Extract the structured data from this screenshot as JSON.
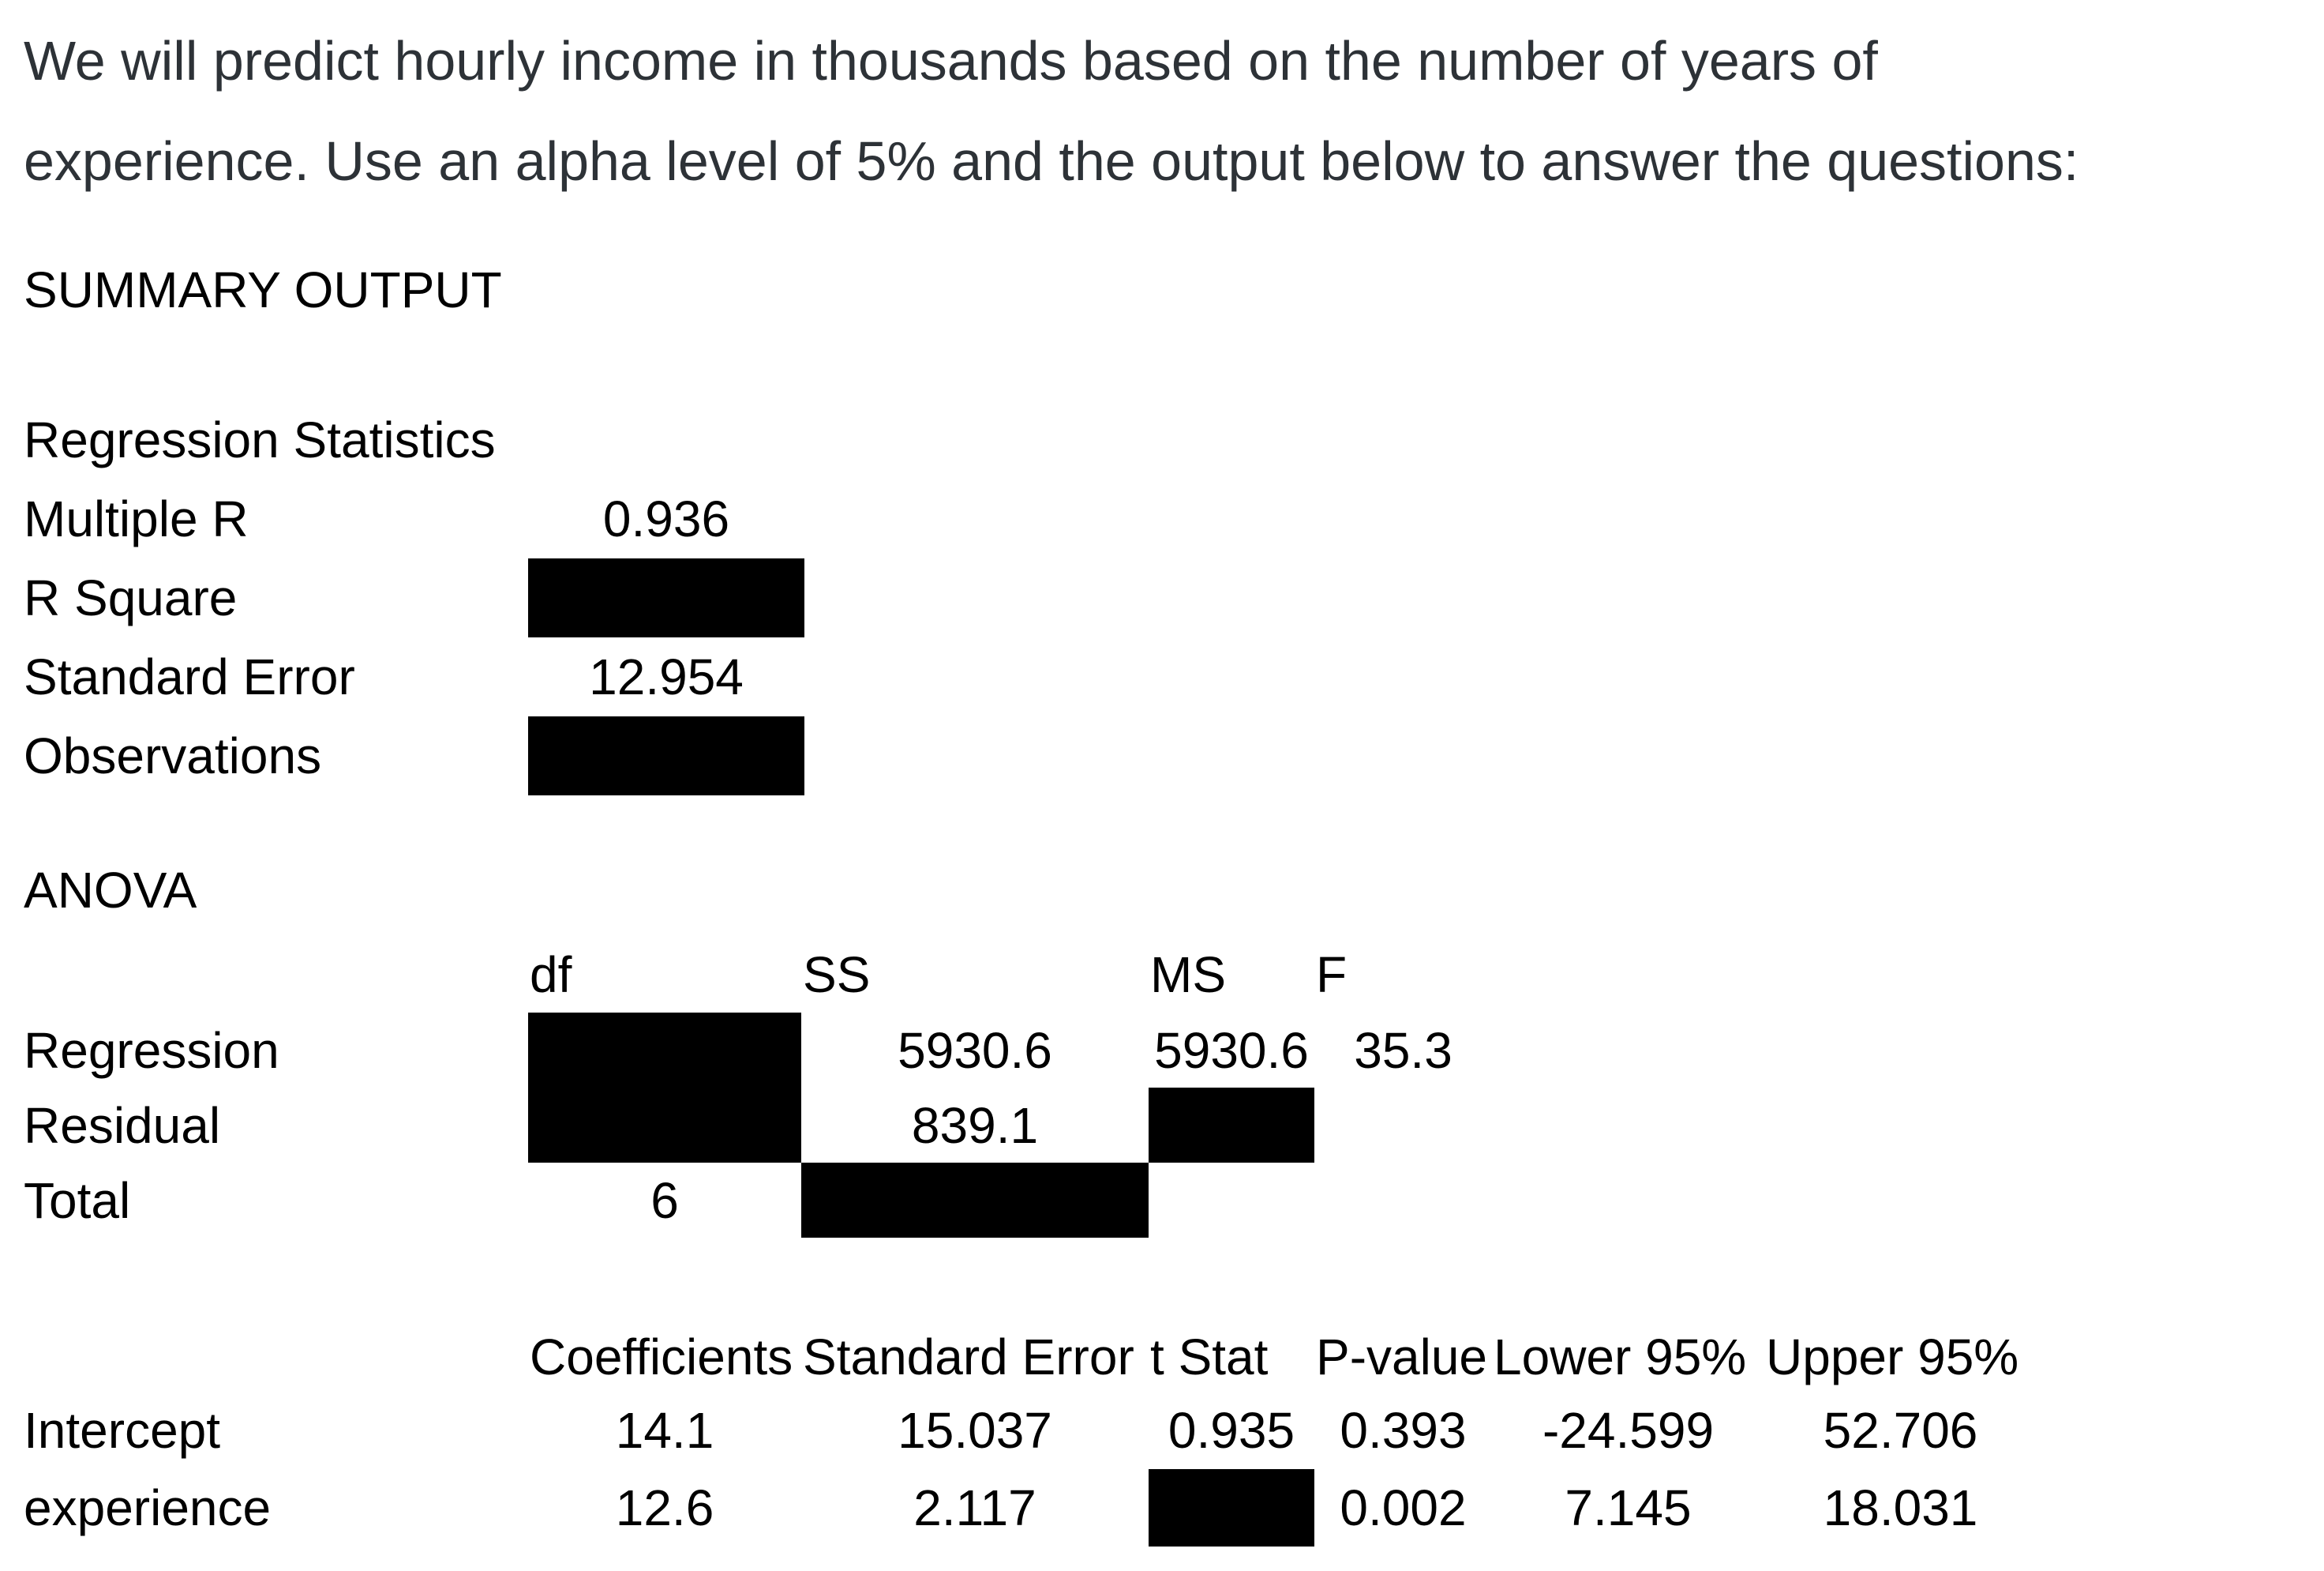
{
  "page": {
    "background_color": "#ffffff",
    "text_color": "#000000",
    "intro_text_color": "#2d3237",
    "redaction_color": "#000000"
  },
  "intro": {
    "line1": "We will predict hourly income in thousands based on the number of years of",
    "line2": "experience. Use an alpha level of 5% and the output below to answer the questions:"
  },
  "summary": {
    "title": "SUMMARY OUTPUT",
    "regression_statistics": {
      "header": "Regression Statistics",
      "rows": [
        {
          "label": "Multiple R",
          "value": "0.936",
          "redacted": false
        },
        {
          "label": "R Square",
          "value": "",
          "redacted": true
        },
        {
          "label": "Standard Error",
          "value": "12.954",
          "redacted": false
        },
        {
          "label": "Observations",
          "value": "",
          "redacted": true
        }
      ]
    }
  },
  "anova": {
    "title": "ANOVA",
    "columns": [
      "df",
      "SS",
      "MS",
      "F"
    ],
    "rows": [
      {
        "label": "Regression",
        "df": "",
        "df_redacted": true,
        "ss": "5930.6",
        "ss_redacted": false,
        "ms": "5930.6",
        "ms_redacted": false,
        "f": "35.3"
      },
      {
        "label": "Residual",
        "df": "",
        "df_redacted": true,
        "ss": "839.1",
        "ss_redacted": false,
        "ms": "",
        "ms_redacted": true,
        "f": ""
      },
      {
        "label": "Total",
        "df": "6",
        "df_redacted": false,
        "ss": "",
        "ss_redacted": true,
        "ms": "",
        "ms_redacted": false,
        "f": ""
      }
    ]
  },
  "coefficients_table": {
    "columns": [
      "Coefficients",
      "Standard Error",
      "t Stat",
      "P-value",
      "Lower 95%",
      "Upper 95%"
    ],
    "rows": [
      {
        "label": "Intercept",
        "coefficient": "14.1",
        "standard_error": "15.037",
        "t_stat": "0.935",
        "t_stat_redacted": false,
        "p_value": "0.393",
        "lower_95": "-24.599",
        "upper_95": "52.706"
      },
      {
        "label": "experience",
        "coefficient": "12.6",
        "standard_error": "2.117",
        "t_stat": "",
        "t_stat_redacted": true,
        "p_value": "0.002",
        "lower_95": "7.145",
        "upper_95": "18.031"
      }
    ]
  }
}
